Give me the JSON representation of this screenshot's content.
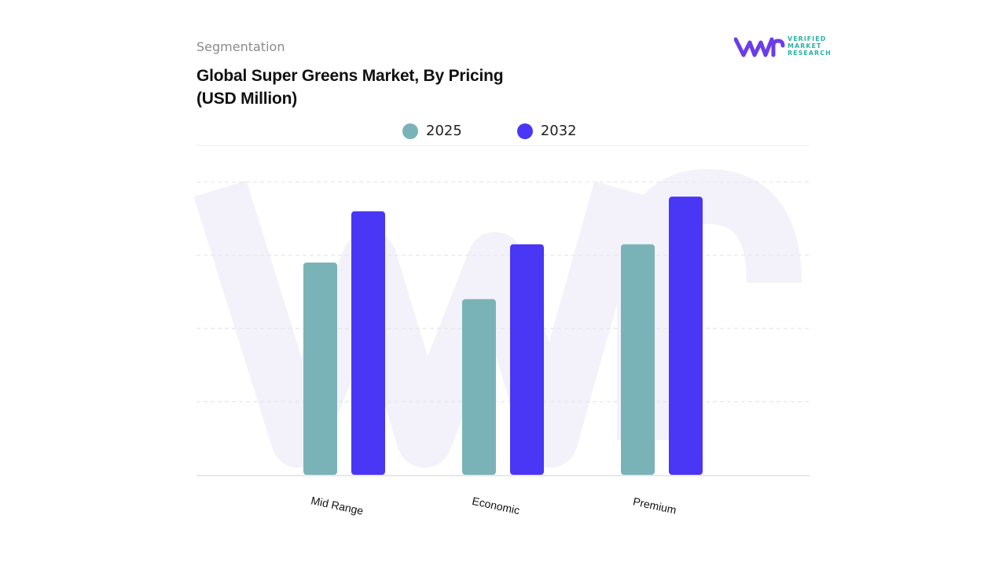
{
  "header": {
    "segment_label": "Segmentation",
    "title": "Global Super Greens Market, By Pricing (USD Million)"
  },
  "logo": {
    "line1": "VERIFIED",
    "line2": "MARKET",
    "line3": "RESEARCH",
    "mark": "vmr-logo-icon",
    "colors": {
      "mark": "#6b3de8",
      "text": "#2fb0a5"
    }
  },
  "chart_data": {
    "type": "bar",
    "categories": [
      "Mid Range",
      "Economic",
      "Premium"
    ],
    "series": [
      {
        "name": "2025",
        "color": "#7ab3b7",
        "values": [
          58,
          48,
          63
        ]
      },
      {
        "name": "2032",
        "color": "#4a36f5",
        "values": [
          72,
          63,
          76
        ]
      }
    ],
    "ylim": [
      0,
      90
    ],
    "grid": true,
    "legend": "top-center",
    "xlabel": "",
    "ylabel": ""
  }
}
